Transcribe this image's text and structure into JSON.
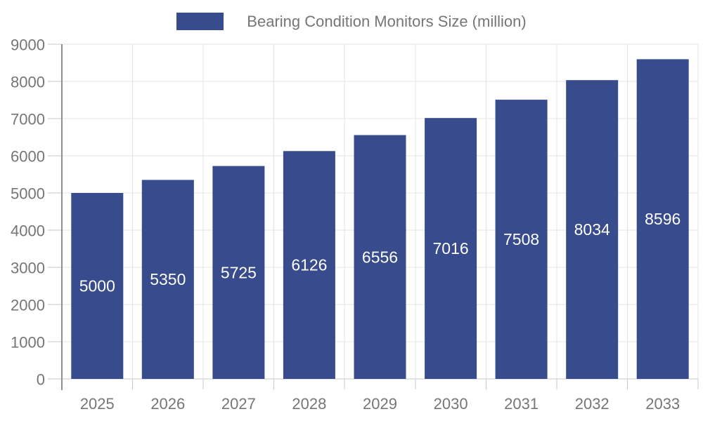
{
  "legend": {
    "label": "Bearing Condition Monitors Size (million)"
  },
  "chart_data": {
    "type": "bar",
    "title": "Bearing Condition Monitors Size (million)",
    "series_name": "Bearing Condition Monitors Size (million)",
    "categories": [
      "2025",
      "2026",
      "2027",
      "2028",
      "2029",
      "2030",
      "2031",
      "2032",
      "2033"
    ],
    "values": [
      5000,
      5350,
      5725,
      6126,
      6556,
      7016,
      7508,
      8034,
      8596
    ],
    "xlabel": "",
    "ylabel": "",
    "ylim": [
      0,
      9000
    ],
    "ytick_step": 1000,
    "grid": true,
    "legend_position": "top",
    "bar_label_position": "inside-center",
    "colors": {
      "bar": "#374B8D",
      "bar_value_label": "#ffffff",
      "axis_text": "#767676",
      "legend_text": "#767676",
      "gridline": "#e4e4e4",
      "tick": "#c9c9c9",
      "y_axis_line": "#909090",
      "background": "#ffffff"
    }
  }
}
